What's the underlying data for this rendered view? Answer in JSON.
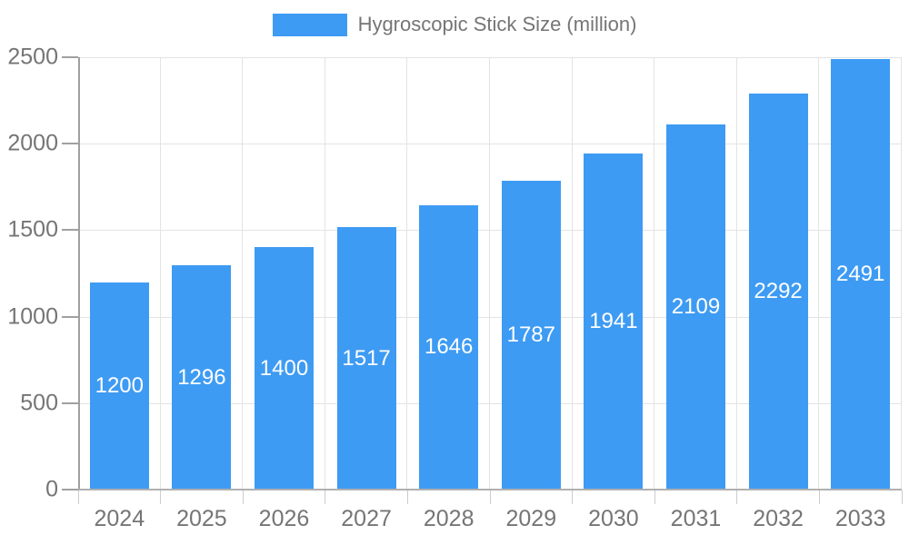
{
  "chart_data": {
    "type": "bar",
    "title": "",
    "legend": {
      "position": "top-center",
      "items": [
        {
          "label": "Hygroscopic Stick Size (million)",
          "color": "#3E9BF3"
        }
      ]
    },
    "categories": [
      "2024",
      "2025",
      "2026",
      "2027",
      "2028",
      "2029",
      "2030",
      "2031",
      "2032",
      "2033"
    ],
    "series": [
      {
        "name": "Hygroscopic Stick Size (million)",
        "values": [
          1200,
          1296,
          1400,
          1517,
          1646,
          1787,
          1941,
          2109,
          2292,
          2491
        ]
      }
    ],
    "value_labels_shown": true,
    "xlabel": "",
    "ylabel": "",
    "ylim": [
      0,
      2500
    ],
    "yticks": [
      0,
      500,
      1000,
      1500,
      2000,
      2500
    ],
    "grid": {
      "horizontal": true,
      "vertical": true
    },
    "colors": {
      "bar": "#3E9BF3",
      "value_label": "#FFFFFF",
      "axis_text": "#757575",
      "gridline": "#E3E3E3",
      "axis_line": "#A0A0A0"
    }
  }
}
